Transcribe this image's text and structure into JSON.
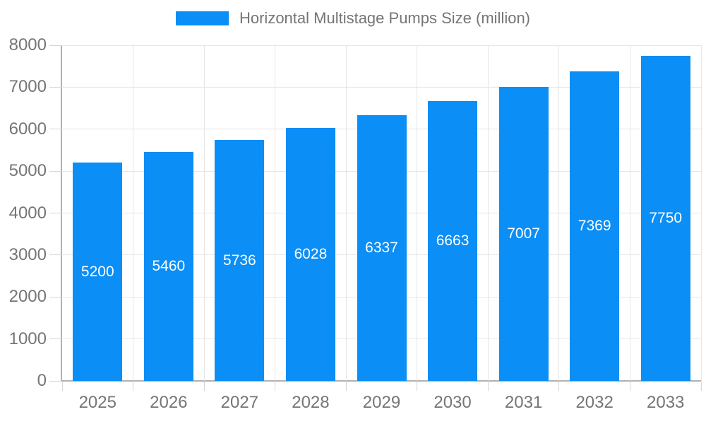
{
  "chart_data": {
    "type": "bar",
    "title": "Horizontal Multistage Pumps Size (million)",
    "series": [
      {
        "name": "Horizontal Multistage Pumps Size (million)",
        "values": [
          5200,
          5460,
          5736,
          6028,
          6337,
          6663,
          7007,
          7369,
          7750
        ]
      }
    ],
    "categories": [
      "2025",
      "2026",
      "2027",
      "2028",
      "2029",
      "2030",
      "2031",
      "2032",
      "2033"
    ],
    "values": [
      5200,
      5460,
      5736,
      6028,
      6337,
      6663,
      7007,
      7369,
      7750
    ],
    "xlabel": "",
    "ylabel": "",
    "ylim": [
      0,
      8000
    ],
    "yticks": [
      0,
      1000,
      2000,
      3000,
      4000,
      5000,
      6000,
      7000,
      8000
    ],
    "grid": true,
    "legend_position": "top-center",
    "bar_labels_inside": true,
    "bar_color": "#0b8ef5",
    "bar_label_color": "#ffffff",
    "axis_text_color": "#757575",
    "gridline_color": "#e6e6e6",
    "axis_line_color": "#b0b0b0",
    "tick_color": "#d6d6d6",
    "background_color": "#ffffff"
  },
  "legend": {
    "label": "Horizontal Multistage Pumps Size (million)",
    "swatch_icon": "legend-color-swatch"
  }
}
